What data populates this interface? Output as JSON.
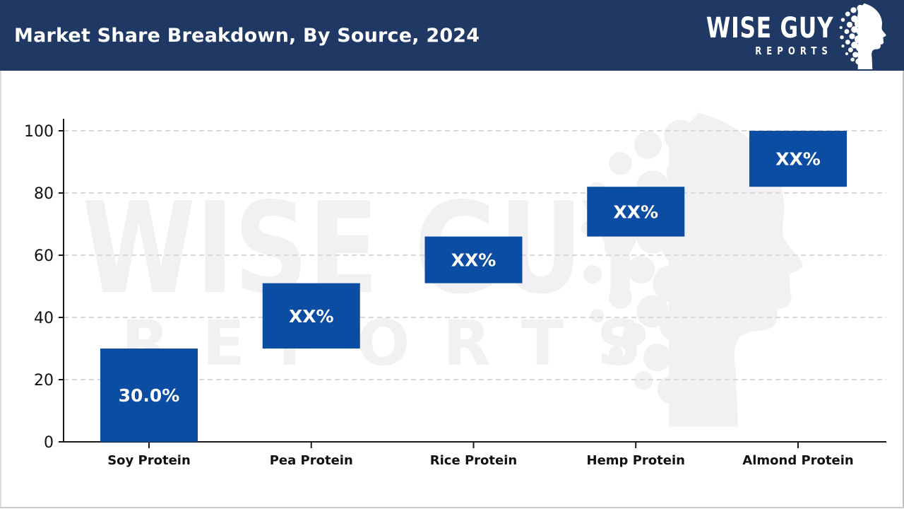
{
  "header": {
    "title": "Market Share Breakdown, By Source, 2024",
    "logo": {
      "wordmark": "WISE GUY",
      "subtitle": "REPORTS"
    }
  },
  "watermark": {
    "wordmark": "WISE GUY",
    "subtitle": "REPORTS"
  },
  "chart_data": {
    "type": "bar",
    "subtype": "waterfall",
    "title": "Market Share Breakdown, By Source, 2024",
    "categories": [
      "Soy Protein",
      "Pea Protein",
      "Rice Protein",
      "Hemp Protein",
      "Almond Protein"
    ],
    "segments": [
      {
        "category": "Soy Protein",
        "start": 0,
        "end": 30,
        "label": "30.0%"
      },
      {
        "category": "Pea Protein",
        "start": 30,
        "end": 51,
        "label": "XX%"
      },
      {
        "category": "Rice Protein",
        "start": 51,
        "end": 66,
        "label": "XX%"
      },
      {
        "category": "Hemp Protein",
        "start": 66,
        "end": 82,
        "label": "XX%"
      },
      {
        "category": "Almond Protein",
        "start": 82,
        "end": 100,
        "label": "XX%"
      }
    ],
    "yticks": [
      0,
      20,
      40,
      60,
      80,
      100
    ],
    "ylim": [
      0,
      104
    ],
    "xlabel": "",
    "ylabel": "",
    "grid": "horizontal-dashed",
    "legend": "none",
    "bar_color": "#0B4DA2",
    "bar_label_color": "#FFFFFF",
    "grid_color": "#D8D8D8",
    "axis_color": "#1A1A1A",
    "tick_label_color": "#111111"
  },
  "colors": {
    "header_bg": "#1F3864",
    "watermark": "#F1F1F3",
    "background": "#FFFFFF"
  }
}
